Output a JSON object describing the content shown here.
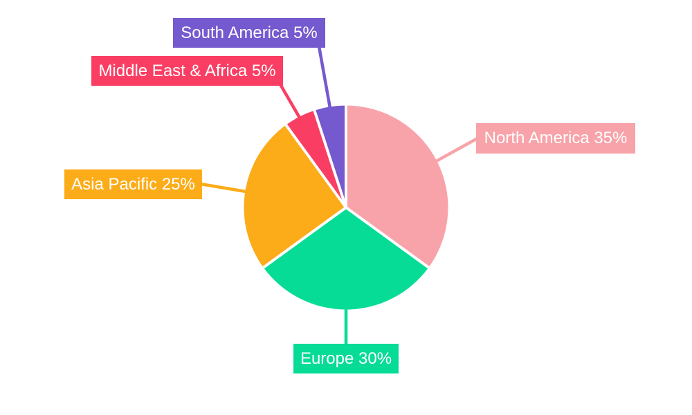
{
  "chart_data": {
    "type": "pie",
    "title": "",
    "background": "#FFFFFF",
    "start_angle_deg": 0,
    "direction": "clockwise",
    "legend_position": "callout-labels",
    "label_text_color": "#FFFFFF",
    "slice_gap_color": "#FFFFFF",
    "segments": [
      {
        "label": "North America",
        "value": 35,
        "unit": "%",
        "display": "North America 35%",
        "color": "#F8A3A9"
      },
      {
        "label": "Europe",
        "value": 30,
        "unit": "%",
        "display": "Europe 30%",
        "color": "#06DC96"
      },
      {
        "label": "Asia Pacific",
        "value": 25,
        "unit": "%",
        "display": "Asia Pacific 25%",
        "color": "#FBAC18"
      },
      {
        "label": "Middle East & Africa",
        "value": 5,
        "unit": "%",
        "display": "Middle East & Africa 5%",
        "color": "#FA3E63"
      },
      {
        "label": "South America",
        "value": 5,
        "unit": "%",
        "display": "South America 5%",
        "color": "#7559CE"
      }
    ]
  }
}
